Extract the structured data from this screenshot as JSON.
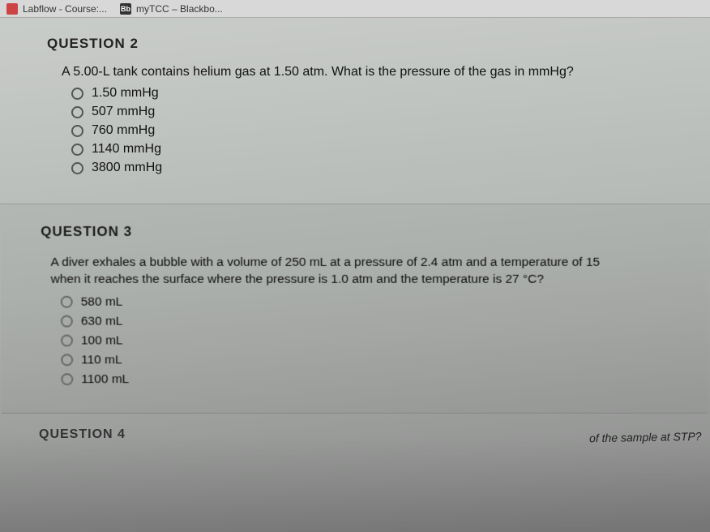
{
  "bookmarks": {
    "item1": "Labflow - Course:...",
    "item2": "myTCC – Blackbo...",
    "fav2_text": "Bb"
  },
  "q2": {
    "heading": "QUESTION 2",
    "prompt": "A 5.00-L tank contains helium gas at 1.50 atm. What is the pressure of the gas in mmHg?",
    "options": {
      "o1": "1.50 mmHg",
      "o2": "507 mmHg",
      "o3": "760 mmHg",
      "o4": "1140 mmHg",
      "o5": "3800 mmHg"
    }
  },
  "q3": {
    "heading": "QUESTION 3",
    "prompt_line1": "A diver exhales a bubble with a volume of 250 mL at a pressure of 2.4 atm and a temperature of 15",
    "prompt_line2": "when it reaches the surface where the pressure is 1.0 atm and the temperature is 27 °C?",
    "options": {
      "o1": "580 mL",
      "o2": "630 mL",
      "o3": "100 mL",
      "o4": "110 mL",
      "o5": "1100 mL"
    }
  },
  "q4": {
    "heading": "QUESTION 4",
    "fragment": "of the sample at STP?"
  },
  "colors": {
    "bg_top": "#c8ccc8",
    "bg_bottom": "#888888",
    "text": "#111111",
    "radio_border": "#555555",
    "divider": "#999999"
  }
}
